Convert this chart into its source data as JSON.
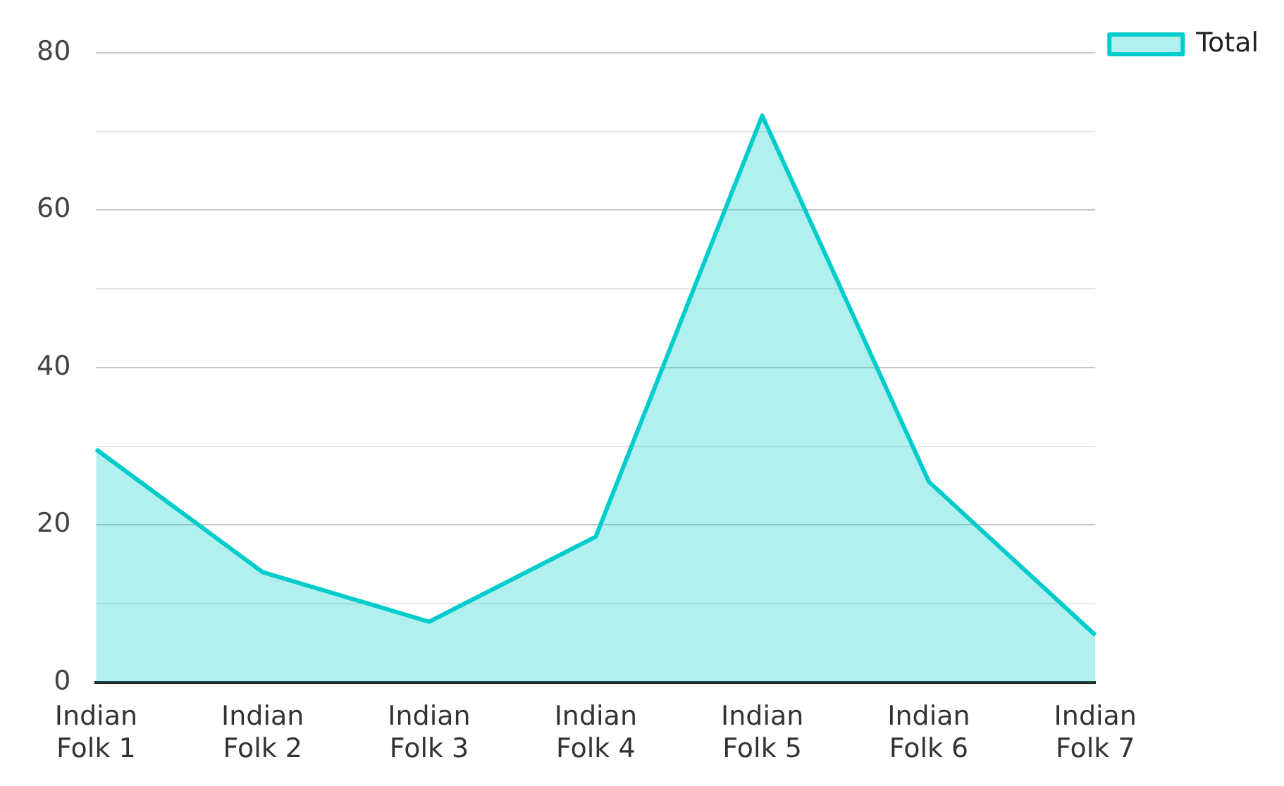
{
  "chart_data": {
    "type": "area",
    "categories": [
      "Indian Folk 1",
      "Indian Folk 2",
      "Indian Folk 3",
      "Indian Folk 4",
      "Indian Folk 5",
      "Indian Folk 6",
      "Indian Folk 7"
    ],
    "series": [
      {
        "name": "Total",
        "color": "#00cccc",
        "values": [
          29.6,
          14,
          7.7,
          18.5,
          72,
          25.5,
          6
        ]
      }
    ],
    "ylim": [
      0,
      80
    ],
    "yticks": [
      0,
      {
        "value": 10,
        "label": null
      },
      20,
      {
        "value": 30,
        "label": null
      },
      40,
      {
        "value": 50,
        "label": null
      },
      60,
      {
        "value": 70,
        "label": null
      },
      80
    ],
    "grid": "y",
    "legend": "top right",
    "marker": "none",
    "line_style": "solid"
  }
}
